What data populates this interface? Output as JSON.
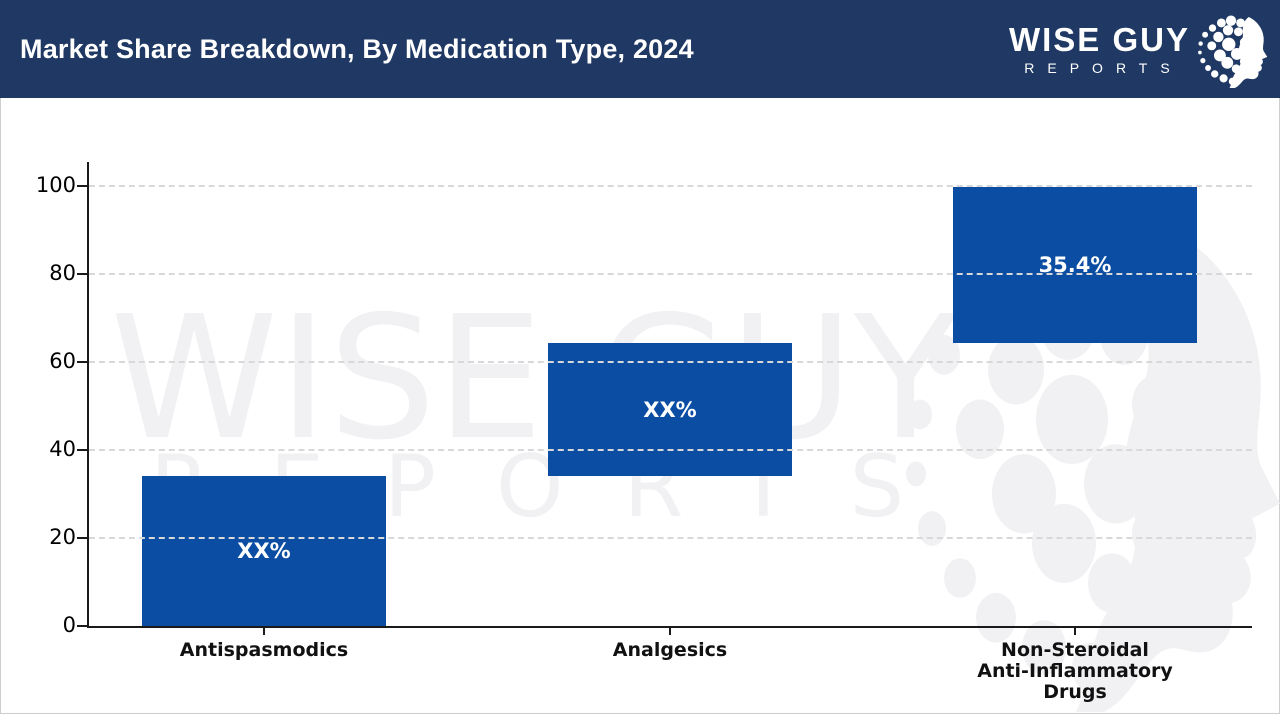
{
  "header": {
    "title": "Market Share Breakdown, By Medication Type, 2024",
    "logo": {
      "line1": "WISE GUY",
      "line2": "REPORTS"
    }
  },
  "watermark": {
    "line1": "WISE GUY",
    "line2": "REPORTS"
  },
  "colors": {
    "header_bg": "#1F3864",
    "bar": "#0B4DA2",
    "bar_label": "#FFFFFF",
    "grid": "#D8D8D8",
    "axis": "#1A1A1A",
    "watermark": "#F1F1F4"
  },
  "chart_data": {
    "type": "bar",
    "subtype": "floating-segment waterfall",
    "title": "Market Share Breakdown, By Medication Type, 2024",
    "categories": [
      "Antispasmodics",
      "Analgesics",
      "Non-Steroidal\nAnti-Inflammatory\nDrugs"
    ],
    "segments": [
      {
        "category": "Antispasmodics",
        "start": 0,
        "end": 34,
        "label": "XX%"
      },
      {
        "category": "Analgesics",
        "start": 34,
        "end": 64.4,
        "label": "XX%"
      },
      {
        "category": "Non-Steroidal Anti-Inflammatory Drugs",
        "start": 64.4,
        "end": 99.8,
        "label": "35.4%"
      }
    ],
    "yticks": [
      0,
      20,
      40,
      60,
      80,
      100
    ],
    "ylim": [
      0,
      105.5
    ],
    "xlabel": "",
    "ylabel": "",
    "grid": "horizontal dashed",
    "legend": "none"
  }
}
